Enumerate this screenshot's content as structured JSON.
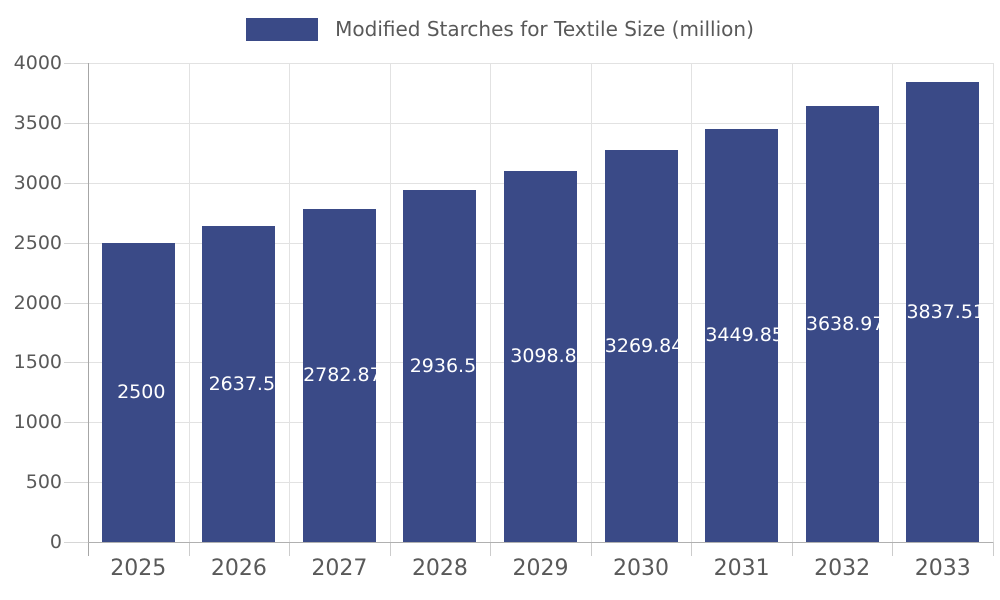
{
  "legend": {
    "label": "Modified Starches for Textile Size (million)",
    "swatch_color": "#3a4a87"
  },
  "chart_data": {
    "type": "bar",
    "title": "",
    "categories": [
      "2025",
      "2026",
      "2027",
      "2028",
      "2029",
      "2030",
      "2031",
      "2032",
      "2033"
    ],
    "values": [
      2500,
      2637.5,
      2782.87,
      2936.5,
      3098.8,
      3269.84,
      3449.85,
      3638.97,
      3837.51
    ],
    "series_name": "Modified Starches for Textile Size (million)",
    "xlabel": "",
    "ylabel": "",
    "ylim": [
      0,
      4000
    ],
    "y_ticks": [
      0,
      500,
      1000,
      1500,
      2000,
      2500,
      3000,
      3500,
      4000
    ],
    "grid": true,
    "legend_position": "top",
    "bar_color": "#3a4a87",
    "bar_label_color": "#ffffff",
    "axis_text_color": "#595959",
    "gridline_color": "#e2e2e2",
    "axis_line_color": "#a6a6a6"
  }
}
